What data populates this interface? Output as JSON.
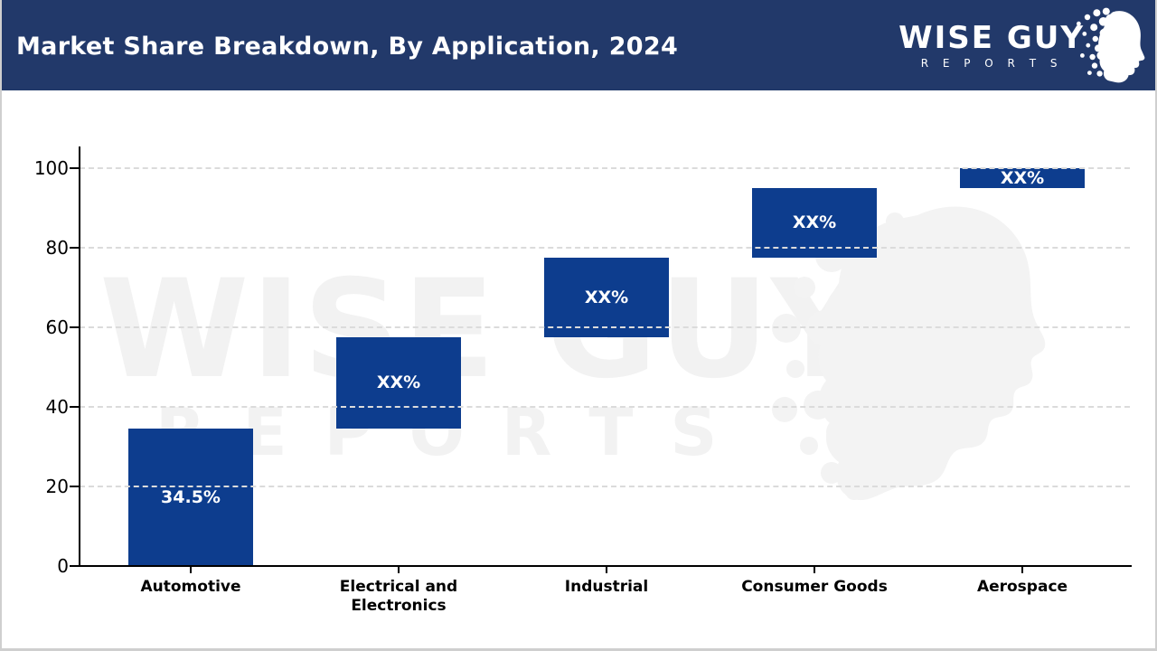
{
  "header": {
    "title": "Market Share Breakdown, By Application, 2024",
    "logo": {
      "line1": "WISE GUY",
      "line2": "R E P O R T S"
    }
  },
  "watermark": {
    "line1": "WISE GUY",
    "line2": "R E P O R T S"
  },
  "colors": {
    "header_bg": "#22396A",
    "bar": "#0D3D8E",
    "bar_label": "#FFFFFF",
    "grid": "#DBDBDB",
    "axis": "#000000",
    "watermark": "#F2F2F2",
    "border": "#CFCFCF"
  },
  "chart_data": {
    "type": "bar",
    "subtype": "waterfall",
    "title": "Market Share Breakdown, By Application, 2024",
    "categories": [
      "Automotive",
      "Electrical and Electronics",
      "Industrial",
      "Consumer Goods",
      "Aerospace"
    ],
    "bars": [
      {
        "category": "Automotive",
        "start": 0,
        "end": 34.5,
        "value": 34.5,
        "label": "34.5%"
      },
      {
        "category": "Electrical and Electronics",
        "start": 34.5,
        "end": 57.5,
        "value": 23,
        "label": "XX%"
      },
      {
        "category": "Industrial",
        "start": 57.5,
        "end": 77.5,
        "value": 20,
        "label": "XX%"
      },
      {
        "category": "Consumer Goods",
        "start": 77.5,
        "end": 95,
        "value": 17.5,
        "label": "XX%"
      },
      {
        "category": "Aerospace",
        "start": 95,
        "end": 100,
        "value": 5,
        "label": "XX%"
      }
    ],
    "xlabel": "",
    "ylabel": "",
    "ylim": [
      0,
      100
    ],
    "yticks": [
      0,
      20,
      40,
      60,
      80,
      100
    ],
    "grid": true,
    "grid_style": "dashed",
    "legend": "none"
  }
}
